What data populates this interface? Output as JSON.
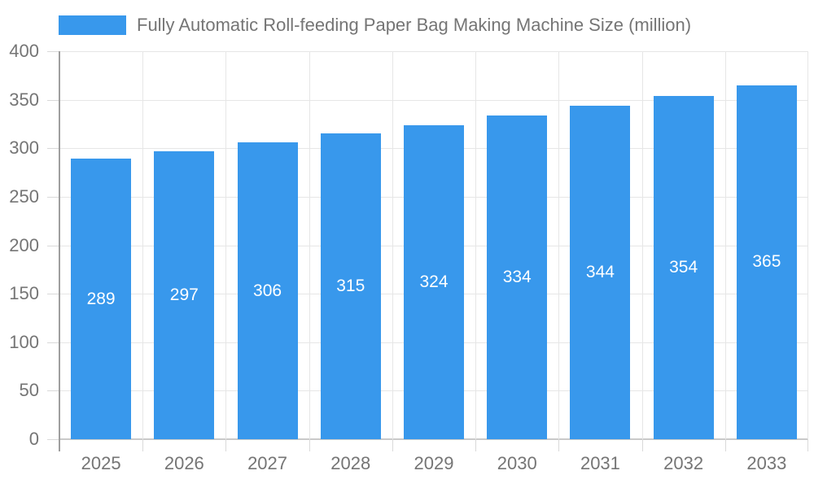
{
  "chart_data": {
    "type": "bar",
    "title": "Fully Automatic Roll-feeding Paper Bag Making Machine Size (million)",
    "legend": {
      "label": "Fully Automatic Roll-feeding Paper Bag Making Machine Size (million)",
      "position": "top-left"
    },
    "categories": [
      "2025",
      "2026",
      "2027",
      "2028",
      "2029",
      "2030",
      "2031",
      "2032",
      "2033"
    ],
    "values": [
      289,
      297,
      306,
      315,
      324,
      334,
      344,
      354,
      365
    ],
    "xlabel": "",
    "ylabel": "",
    "ylim": [
      0,
      400
    ],
    "yticks": [
      0,
      50,
      100,
      150,
      200,
      250,
      300,
      350,
      400
    ],
    "grid": true,
    "bar_color": "#3898EC",
    "value_label_color": "#FFFFFF",
    "axis_text_color": "#757575"
  }
}
